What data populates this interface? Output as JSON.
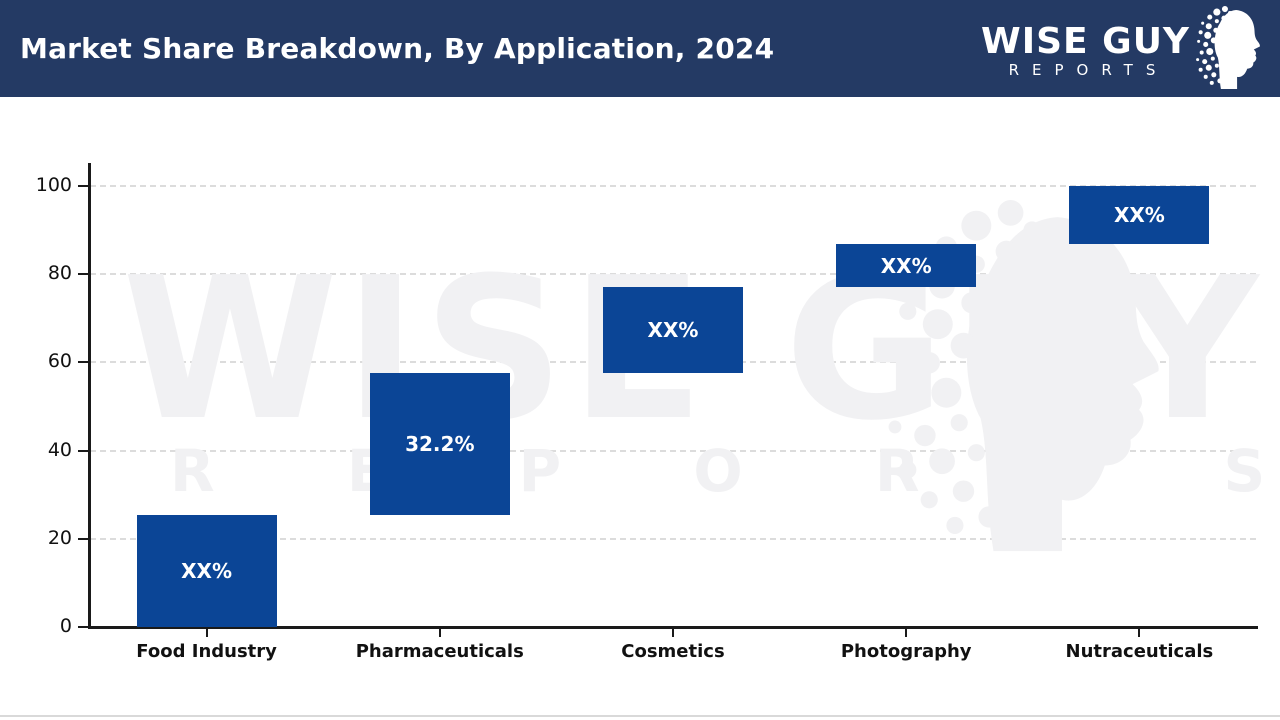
{
  "header": {
    "title": "Market Share Breakdown, By Application, 2024",
    "background_color": "#243A64",
    "logo": {
      "line1": "WISE GUY",
      "line2": "REPORTS"
    }
  },
  "watermark": {
    "line1": "WISE GUY",
    "line2": "R E P O R T S"
  },
  "chart_data": {
    "type": "bar",
    "subtype": "waterfall",
    "title": "Market Share Breakdown, By Application, 2024",
    "xlabel": "",
    "ylabel": "",
    "categories": [
      "Food Industry",
      "Pharmaceuticals",
      "Cosmetics",
      "Photography",
      "Nutraceuticals"
    ],
    "series": [
      {
        "name": "Food Industry",
        "start": 0,
        "end": 25.5,
        "label": "XX%"
      },
      {
        "name": "Pharmaceuticals",
        "start": 25.5,
        "end": 57.7,
        "label": "32.2%"
      },
      {
        "name": "Cosmetics",
        "start": 57.7,
        "end": 77.0,
        "label": "XX%"
      },
      {
        "name": "Photography",
        "start": 77.0,
        "end": 86.8,
        "label": "XX%"
      },
      {
        "name": "Nutraceuticals",
        "start": 86.8,
        "end": 100.0,
        "label": "XX%"
      }
    ],
    "y_ticks": [
      0,
      20,
      40,
      60,
      80,
      100
    ],
    "ylim": [
      0,
      105
    ],
    "grid": "horizontal-dashed",
    "legend": "none",
    "bar_color": "#0B4596",
    "bar_label_color": "#FFFFFF",
    "grid_color": "#DCDCDC",
    "axis_color": "#1A1A1A"
  }
}
